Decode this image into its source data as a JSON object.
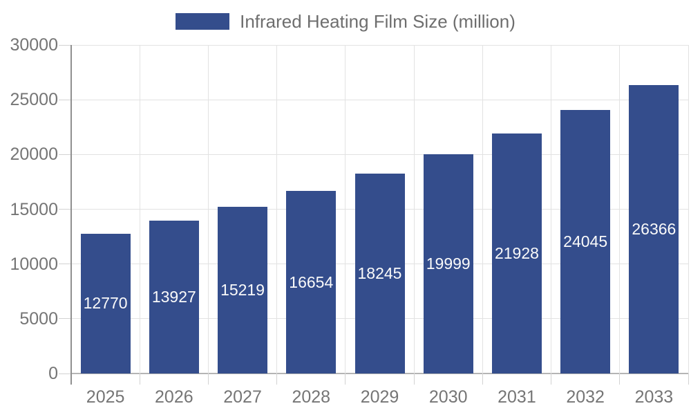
{
  "chart_data": {
    "type": "bar",
    "title": "",
    "series_name": "Infrared Heating Film Size (million)",
    "categories": [
      "2025",
      "2026",
      "2027",
      "2028",
      "2029",
      "2030",
      "2031",
      "2032",
      "2033"
    ],
    "values": [
      12770,
      13927,
      15219,
      16654,
      18245,
      19999,
      21928,
      24045,
      26366
    ],
    "xlabel": "",
    "ylabel": "",
    "ylim": [
      0,
      30000
    ],
    "yticks": [
      0,
      5000,
      10000,
      15000,
      20000,
      25000,
      30000
    ],
    "grid": true,
    "legend_position": "top-center",
    "bar_value_labels": "inside-center"
  },
  "legend": {
    "label": "Infrared Heating Film Size (million)"
  },
  "colors": {
    "bar": "#344D8C",
    "bar_label": "#fafafa",
    "axis_text": "#757575",
    "legend_text": "#6e6e6e",
    "grid_line": "#e2e2e2",
    "zero_line": "#b5b5b5",
    "axis_line": "#8f8f8f",
    "tick_line": "#d2d2d2",
    "background": "#ffffff"
  }
}
